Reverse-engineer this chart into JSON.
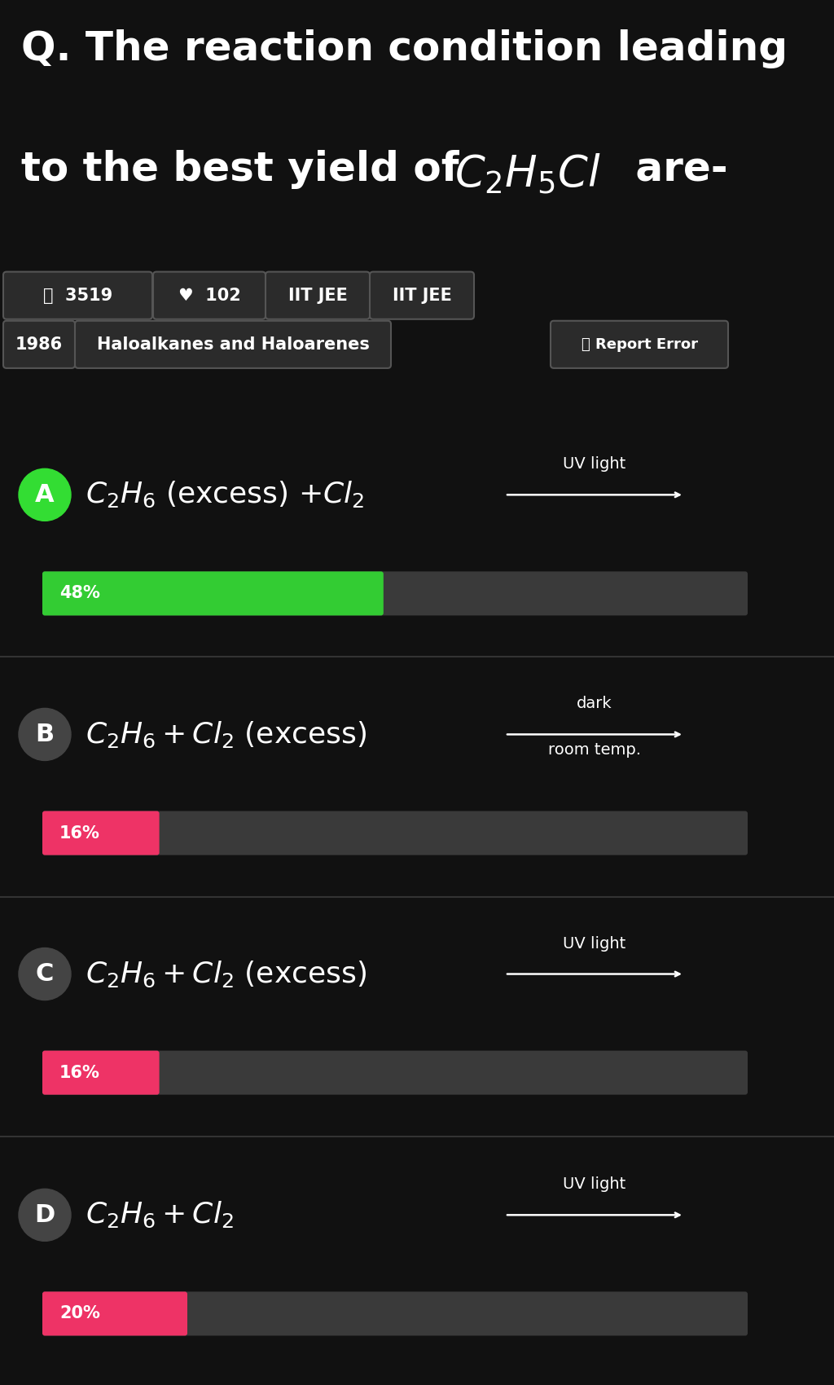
{
  "bg_black": "#111111",
  "bg_dark_green": "#1a2d1a",
  "bg_dark_gray": "#1c1c1c",
  "bg_separator": "#2a2a2a",
  "title_line1": "Q. The reaction condition leading",
  "title_line2_plain": "to the best yield of ",
  "title_line2_end": " are-",
  "meta_views": "3519",
  "meta_likes": "102",
  "meta_tags": [
    "IIT JEE",
    "IIT JEE"
  ],
  "meta_year": "1986",
  "meta_topic": "Haloalkanes and Haloarenes",
  "options": [
    {
      "label": "A",
      "label_bg": "#33dd33",
      "label_border": "#33dd33",
      "reaction_plain": " (excess) ",
      "reaction_formula1": "C_2H_6",
      "reaction_plus": "+",
      "reaction_formula2": "Cl_2",
      "has_excess_after_cl2": false,
      "arrow_label_top": "UV light",
      "arrow_label_bottom": "",
      "bg": "#1a2d1a",
      "percent": 48,
      "percent_label": "48%",
      "bar_color": "#33cc33",
      "bar_bg": "#3a3a3a"
    },
    {
      "label": "B",
      "label_bg": "#444444",
      "label_border": "#666666",
      "reaction_plain": " (excess)",
      "reaction_formula1": "C_2H_6",
      "reaction_plus": "+ ",
      "reaction_formula2": "Cl_2",
      "has_excess_after_cl2": true,
      "arrow_label_top": "dark",
      "arrow_label_bottom": "room temp.",
      "bg": "#1c1c1c",
      "percent": 16,
      "percent_label": "16%",
      "bar_color": "#ee3366",
      "bar_bg": "#3a3a3a"
    },
    {
      "label": "C",
      "label_bg": "#444444",
      "label_border": "#666666",
      "reaction_plain": " (excess)",
      "reaction_formula1": "C_2H_6",
      "reaction_plus": "+ ",
      "reaction_formula2": "Cl_2",
      "has_excess_after_cl2": true,
      "arrow_label_top": "UV light",
      "arrow_label_bottom": "",
      "bg": "#1c1c1c",
      "percent": 16,
      "percent_label": "16%",
      "bar_color": "#ee3366",
      "bar_bg": "#3a3a3a"
    },
    {
      "label": "D",
      "label_bg": "#444444",
      "label_border": "#666666",
      "reaction_plain": "",
      "reaction_formula1": "C_2H_6",
      "reaction_plus": "+ ",
      "reaction_formula2": "Cl_2",
      "has_excess_after_cl2": false,
      "arrow_label_top": "UV light",
      "arrow_label_bottom": "",
      "bg": "#1c1c1c",
      "percent": 20,
      "percent_label": "20%",
      "bar_color": "#ee3366",
      "bar_bg": "#3a3a3a"
    }
  ]
}
